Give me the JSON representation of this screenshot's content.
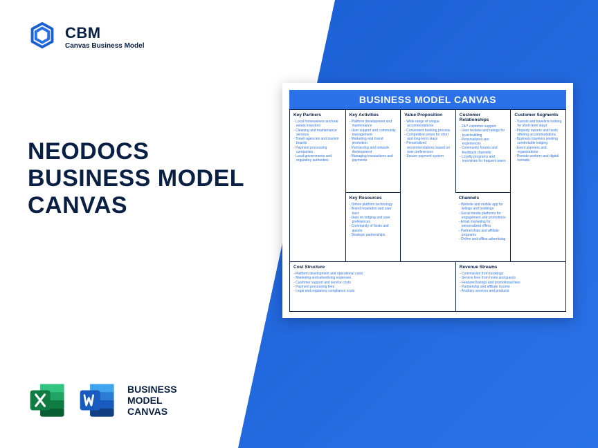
{
  "colors": {
    "brand_dark": "#0a1f44",
    "brand_blue": "#2b72e8",
    "gradient_start": "#1a5fd4",
    "gradient_end": "#2b72e8",
    "excel_green": "#107c41",
    "excel_green_dark": "#0b5e32",
    "word_blue": "#185abd",
    "word_blue_dark": "#103f83",
    "white": "#ffffff"
  },
  "logo": {
    "abbr": "CBM",
    "subtitle": "Canvas Business Model"
  },
  "title": {
    "line1": "NEODOCS",
    "line2": "BUSINESS MODEL",
    "line3": "CANVAS"
  },
  "footer": {
    "label_line1": "BUSINESS",
    "label_line2": "MODEL",
    "label_line3": "CANVAS"
  },
  "canvas": {
    "header": "BUSINESS MODEL CANVAS",
    "cells": {
      "key_partners": {
        "title": "Key Partners",
        "items": [
          "Local homeowners and real estate investors",
          "Cleaning and maintenance services",
          "Travel agencies and tourism boards",
          "Payment processing companies",
          "Local governments and regulatory authorities"
        ]
      },
      "key_activities": {
        "title": "Key Activities",
        "items": [
          "Platform development and maintenance",
          "User support and community management",
          "Marketing and brand promotion",
          "Partnership and network development",
          "Managing transactions and payments"
        ]
      },
      "key_resources": {
        "title": "Key Resources",
        "items": [
          "Online platform technology",
          "Brand reputation and user trust",
          "Data on lodging and user preferences",
          "Community of hosts and guests",
          "Strategic partnerships"
        ]
      },
      "value_proposition": {
        "title": "Value Proposition",
        "items": [
          "Wide range of unique accommodations",
          "Convenient booking process",
          "Competitive prices for short and long-term stays",
          "Personalized recommendations based on user preferences",
          "Secure payment system"
        ]
      },
      "customer_relationships": {
        "title": "Customer Relationships",
        "items": [
          "24/7 customer support",
          "User reviews and ratings for trust-building",
          "Personalized user experiences",
          "Community forums and feedback channels",
          "Loyalty programs and incentives for frequent users"
        ]
      },
      "channels": {
        "title": "Channels",
        "items": [
          "Website and mobile app for listings and bookings",
          "Social media platforms for engagement and promotions",
          "Email marketing for personalized offers",
          "Partnerships and affiliate programs",
          "Online and offline advertising"
        ]
      },
      "customer_segments": {
        "title": "Customer Segments",
        "items": [
          "Tourists and travelers looking for short-term stays",
          "Property owners and hosts offering accommodations",
          "Business travelers seeking comfortable lodging",
          "Event planners and organizations",
          "Remote workers and digital nomads"
        ]
      },
      "cost_structure": {
        "title": "Cost Structure",
        "items": [
          "Platform development and operational costs",
          "Marketing and advertising expenses",
          "Customer support and service costs",
          "Payment processing fees",
          "Legal and regulatory compliance costs"
        ]
      },
      "revenue_streams": {
        "title": "Revenue Streams",
        "items": [
          "Commission from bookings",
          "Service fees from hosts and guests",
          "Featured listings and promotional fees",
          "Partnership and affiliate income",
          "Ancillary services and products"
        ]
      }
    }
  }
}
